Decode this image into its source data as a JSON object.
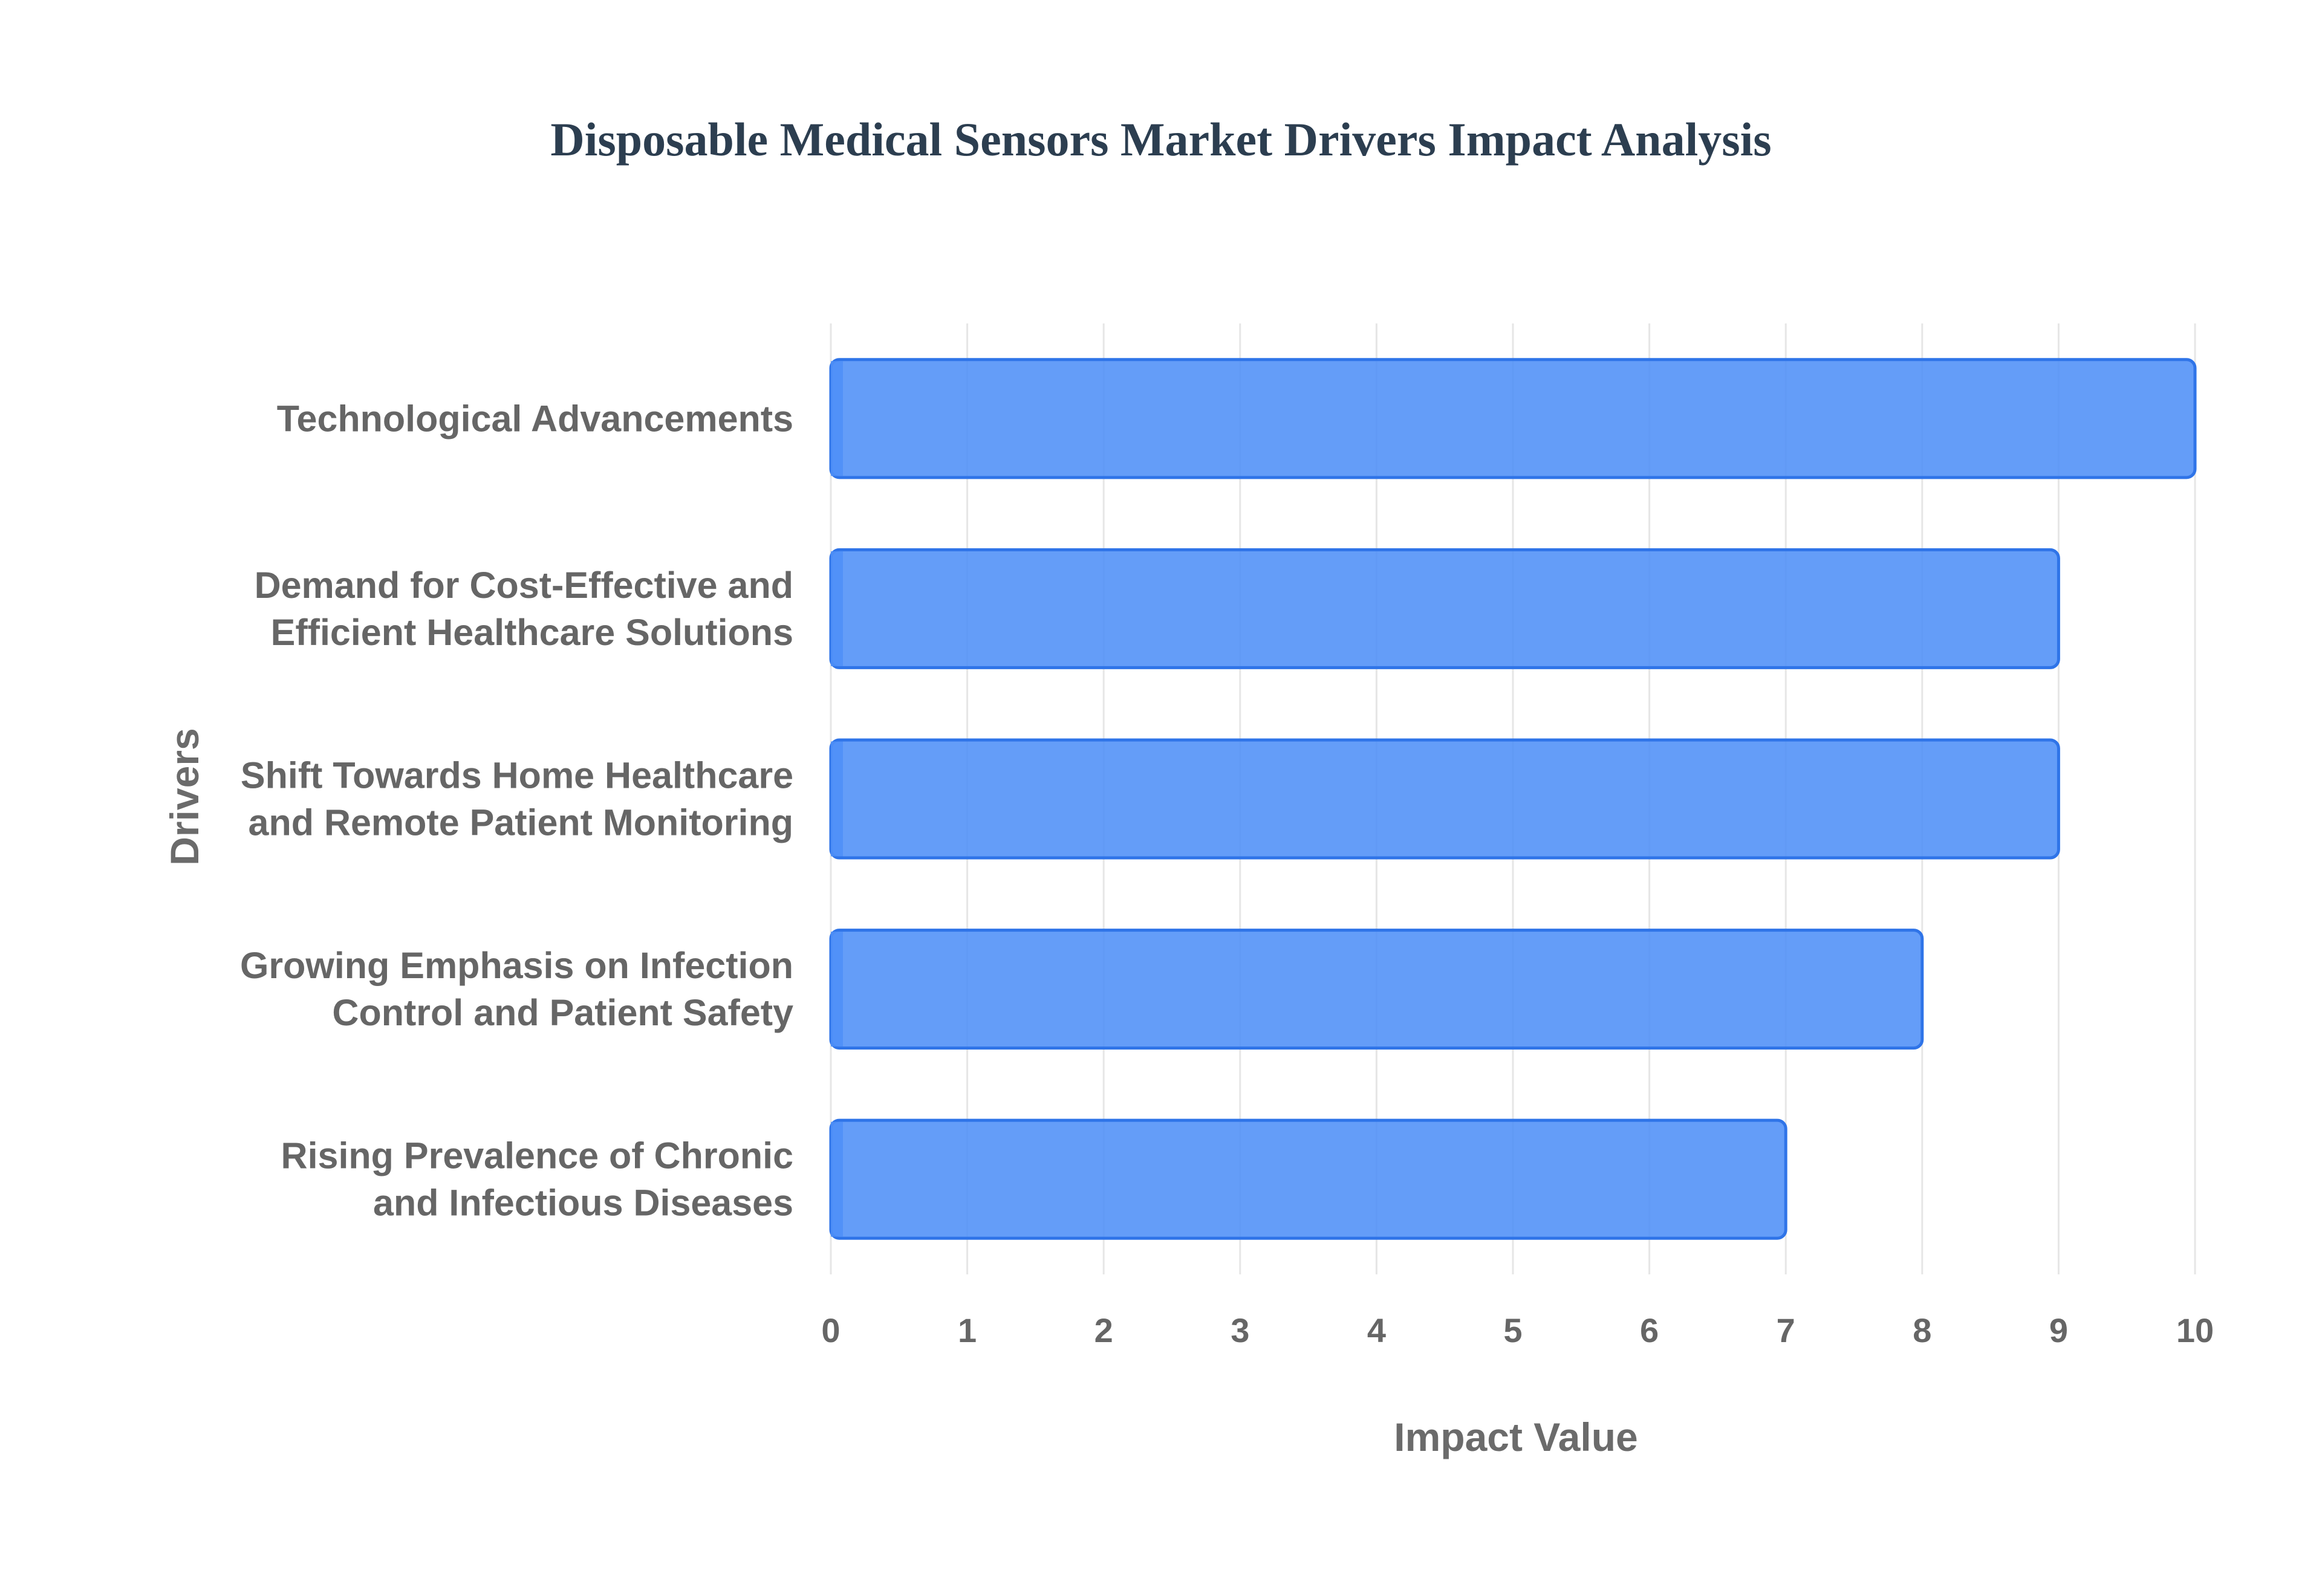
{
  "chart_data": {
    "type": "bar",
    "orientation": "horizontal",
    "title": "Disposable Medical Sensors Market Drivers Impact Analysis",
    "xlabel": "Impact Value",
    "ylabel": "Drivers",
    "categories": [
      "Technological Advancements",
      "Demand for Cost-Effective and Efficient Healthcare Solutions",
      "Shift Towards Home Healthcare and Remote Patient Monitoring",
      "Growing Emphasis on Infection Control and Patient Safety",
      "Rising Prevalence of Chronic and Infectious Diseases"
    ],
    "category_lines": [
      [
        "Technological Advancements"
      ],
      [
        "Demand for Cost-Effective and",
        "Efficient Healthcare Solutions"
      ],
      [
        "Shift Towards Home Healthcare",
        "and Remote Patient Monitoring"
      ],
      [
        "Growing Emphasis on Infection",
        "Control and Patient Safety"
      ],
      [
        "Rising Prevalence of Chronic",
        "and Infectious Diseases"
      ]
    ],
    "values": [
      10,
      9,
      9,
      8,
      7
    ],
    "xlim": [
      0,
      10
    ],
    "xticks": [
      "0",
      "1",
      "2",
      "3",
      "4",
      "5",
      "6",
      "7",
      "8",
      "9",
      "10"
    ],
    "grid": true,
    "legend": "none",
    "colors": {
      "bar_fill": "#4f8ff7",
      "bar_stroke": "#2f74e8",
      "title": "#2c3e50",
      "text": "#666666",
      "grid": "#e6e6e6"
    }
  }
}
